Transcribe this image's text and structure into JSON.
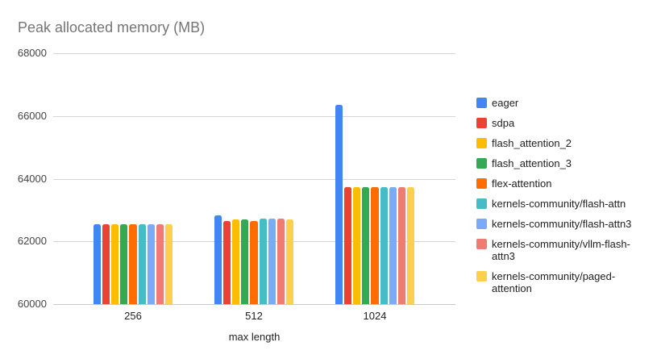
{
  "chart_data": {
    "type": "bar",
    "title": "Peak allocated memory (MB)",
    "xlabel": "max length",
    "ylabel": "",
    "categories": [
      "256",
      "512",
      "1024"
    ],
    "series": [
      {
        "name": "eager",
        "color": "#4285F4",
        "legend_display": "eager",
        "values": [
          62550,
          62830,
          66350
        ]
      },
      {
        "name": "sdpa",
        "color": "#EA4335",
        "legend_display": "sdpa",
        "values": [
          62550,
          62650,
          63740
        ]
      },
      {
        "name": "flash_attention_2",
        "color": "#FBBC04",
        "legend_display": "flash_attention_2",
        "values": [
          62550,
          62700,
          63740
        ]
      },
      {
        "name": "flash_attention_3",
        "color": "#34A853",
        "legend_display": "flash_attention_3",
        "values": [
          62550,
          62700,
          63740
        ]
      },
      {
        "name": "flex-attention",
        "color": "#FF6D01",
        "legend_display": "flex-attention",
        "values": [
          62550,
          62650,
          63740
        ]
      },
      {
        "name": "kernels-community/flash-attn",
        "color": "#46BDC6",
        "legend_display": "kernels-community/flash-attn",
        "values": [
          62550,
          62720,
          63740
        ]
      },
      {
        "name": "kernels-community/flash-attn3",
        "color": "#7BAAF7",
        "legend_display": "kernels-community/flash-attn3",
        "values": [
          62550,
          62720,
          63740
        ]
      },
      {
        "name": "kernels-community/vllm-flash-attn3",
        "color": "#F07B72",
        "legend_display": "kernels-community/vllm-flash-\nattn3",
        "values": [
          62550,
          62720,
          63740
        ]
      },
      {
        "name": "kernels-community/paged-attention",
        "color": "#FCD04F",
        "legend_display": "kernels-community/paged-\nattention",
        "values": [
          62550,
          62700,
          63740
        ]
      }
    ],
    "ylim": [
      60000,
      68000
    ],
    "yticks": [
      60000,
      62000,
      64000,
      66000,
      68000
    ],
    "grid": true,
    "legend_position": "right"
  },
  "colors": {
    "title_text": "#757575",
    "axis_text": "#444444",
    "legend_text": "#212121",
    "gridline": "#d5d5d5",
    "axis_line": "#c9c9c9",
    "background": "#ffffff"
  }
}
